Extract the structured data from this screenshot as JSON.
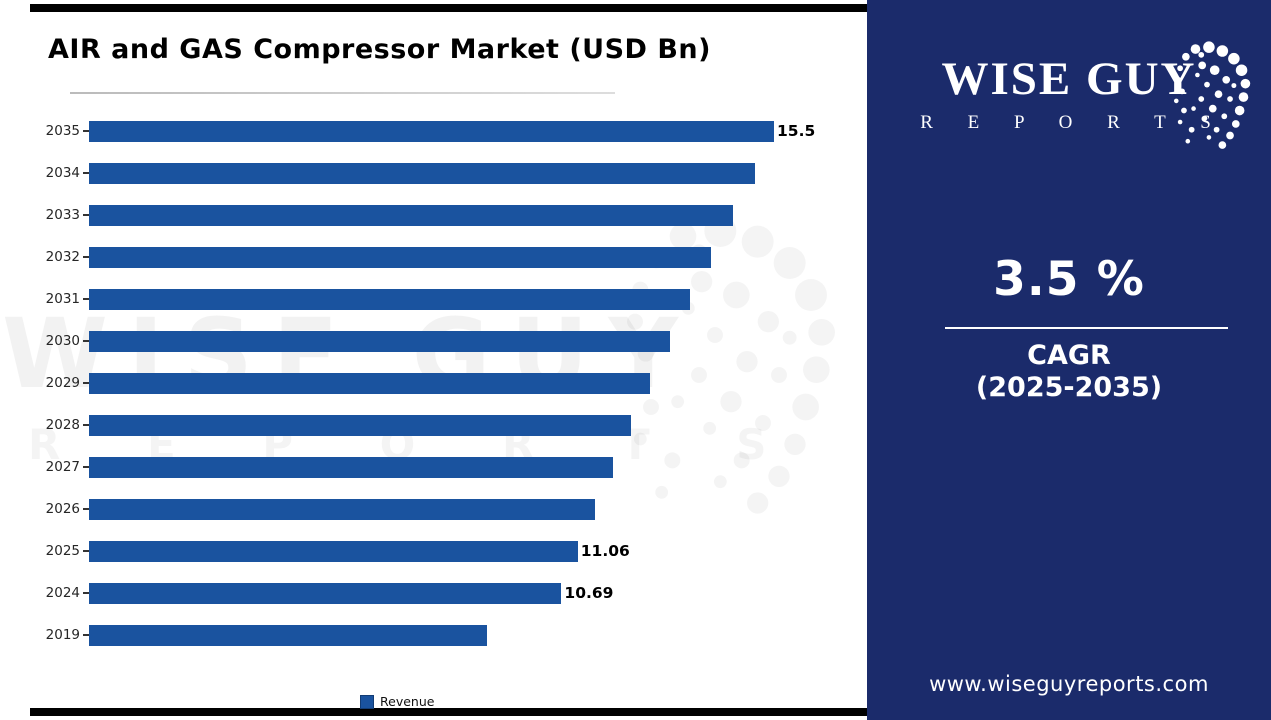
{
  "header": {
    "title": "AIR and GAS Compressor Market (USD Bn)"
  },
  "chart_data": {
    "type": "bar",
    "orientation": "horizontal",
    "title": "AIR and GAS Compressor Market (USD Bn)",
    "legend_label": "Revenue",
    "legend_position": "bottom",
    "bar_color": "#1a539f",
    "xlim": [
      0,
      15.5
    ],
    "grid": false,
    "categories": [
      "2035",
      "2034",
      "2033",
      "2032",
      "2031",
      "2030",
      "2029",
      "2028",
      "2027",
      "2026",
      "2025",
      "2024",
      "2019"
    ],
    "values": [
      15.5,
      15.08,
      14.57,
      14.08,
      13.6,
      13.14,
      12.69,
      12.26,
      11.85,
      11.45,
      11.06,
      10.69,
      9.0
    ],
    "items": [
      {
        "year": "2035",
        "value": 15.5,
        "label": "15.5"
      },
      {
        "year": "2034",
        "value": 15.08
      },
      {
        "year": "2033",
        "value": 14.57
      },
      {
        "year": "2032",
        "value": 14.08
      },
      {
        "year": "2031",
        "value": 13.6
      },
      {
        "year": "2030",
        "value": 13.14
      },
      {
        "year": "2029",
        "value": 12.69
      },
      {
        "year": "2028",
        "value": 12.26
      },
      {
        "year": "2027",
        "value": 11.85
      },
      {
        "year": "2026",
        "value": 11.45
      },
      {
        "year": "2025",
        "value": 11.06,
        "label": "11.06"
      },
      {
        "year": "2024",
        "value": 10.69,
        "label": "10.69"
      },
      {
        "year": "2019",
        "value": 9.0
      }
    ]
  },
  "watermark": {
    "line1": "WISE GUY",
    "line2": "R E P O R T S"
  },
  "sidebar": {
    "bg_color": "#1b2b6b",
    "logo_line1": "WISE GUY",
    "logo_line2": "R E P O R T S",
    "cagr_value": "3.5 %",
    "cagr_label": "CAGR",
    "cagr_range": "(2025-2035)",
    "website": "www.wiseguyreports.com"
  }
}
